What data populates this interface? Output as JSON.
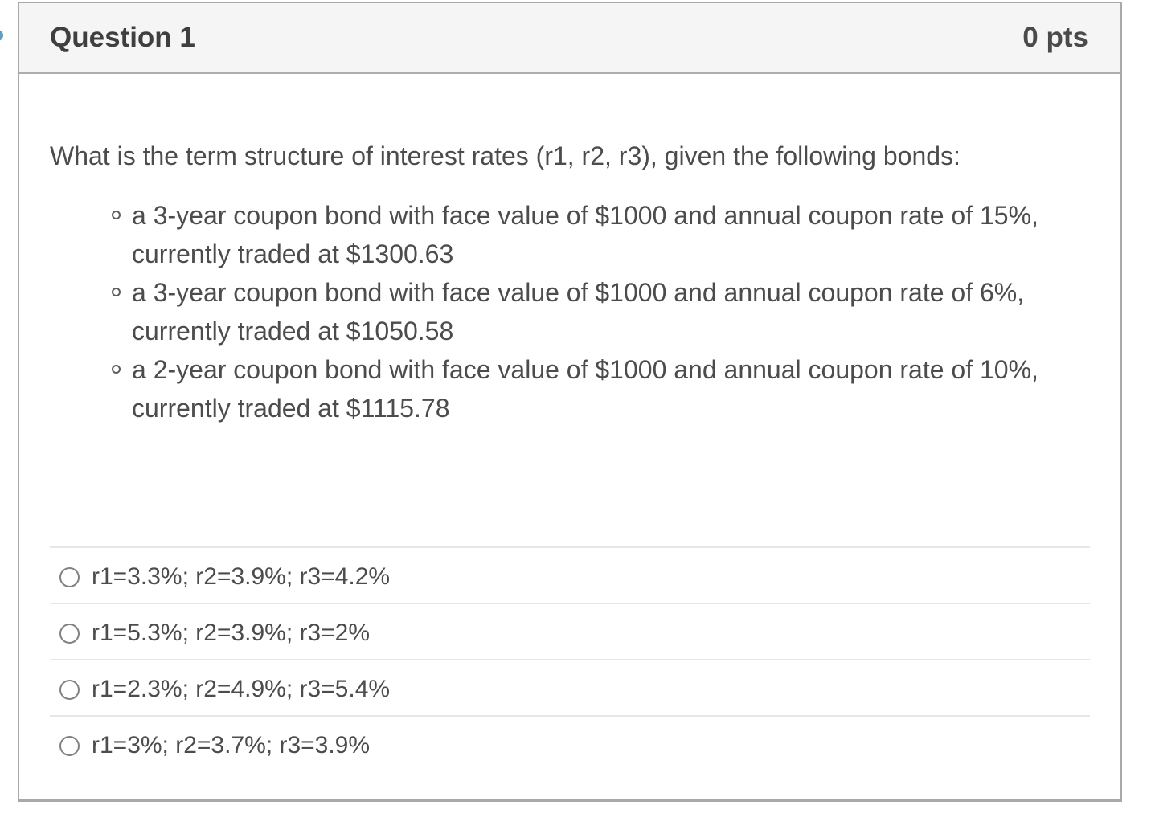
{
  "question": {
    "title": "Question 1",
    "points": "0 pts",
    "prompt": "What is the term structure of interest rates (r1, r2, r3), given the following bonds:",
    "bullets": [
      "a 3-year coupon bond with face value of $1000 and annual coupon rate of 15%, currently traded at $1300.63",
      "a 3-year coupon bond with face value of $1000 and annual coupon rate of 6%, currently traded at $1050.58",
      "a 2-year coupon bond with face value of $1000 and annual coupon rate of 10%, currently traded at $1115.78"
    ],
    "options": [
      {
        "label": "r1=3.3%; r2=3.9%; r3=4.2%",
        "selected": false
      },
      {
        "label": "r1=5.3%; r2=3.9%; r3=2%",
        "selected": false
      },
      {
        "label": "r1=2.3%; r2=4.9%; r3=5.4%",
        "selected": false
      },
      {
        "label": "r1=3%; r2=3.7%; r3=3.9%",
        "selected": false
      }
    ]
  },
  "colors": {
    "header_bg": "#f5f5f5",
    "panel_border": "#a9a9a9",
    "divider": "#e7e7e7",
    "text": "#4c4c4c",
    "nav_dot_blue": "#5f9fca"
  }
}
